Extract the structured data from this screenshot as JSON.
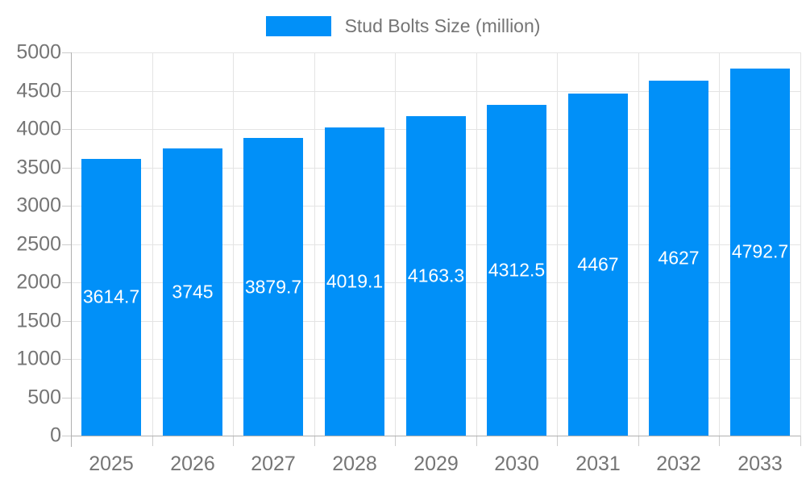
{
  "chart_data": {
    "type": "bar",
    "title": "",
    "xlabel": "",
    "ylabel": "",
    "legend": {
      "label": "Stud Bolts Size (million)",
      "position": "top"
    },
    "categories": [
      "2025",
      "2026",
      "2027",
      "2028",
      "2029",
      "2030",
      "2031",
      "2032",
      "2033"
    ],
    "series": [
      {
        "name": "Stud Bolts Size (million)",
        "values": [
          3614.7,
          3745,
          3879.7,
          4019.1,
          4163.3,
          4312.5,
          4467,
          4627,
          4792.7
        ],
        "labels": [
          "3614.7",
          "3745",
          "3879.7",
          "4019.1",
          "4163.3",
          "4312.5",
          "4467",
          "4627",
          "4792.7"
        ]
      }
    ],
    "data_labels_shown": true,
    "ylim": [
      0,
      5000
    ],
    "ytick_step": 500,
    "ytick_labels": [
      "0",
      "500",
      "1000",
      "1500",
      "2000",
      "2500",
      "3000",
      "3500",
      "4000",
      "4500",
      "5000"
    ],
    "grid": "horizontal and vertical"
  },
  "colors": {
    "background": "#ffffff",
    "bar": "#0190f8",
    "grid": "#e4e4e4",
    "axis": "#b0b0b0",
    "tick": "#cccccc",
    "axis_text": "#757575",
    "data_label_text": "#ffffff"
  }
}
